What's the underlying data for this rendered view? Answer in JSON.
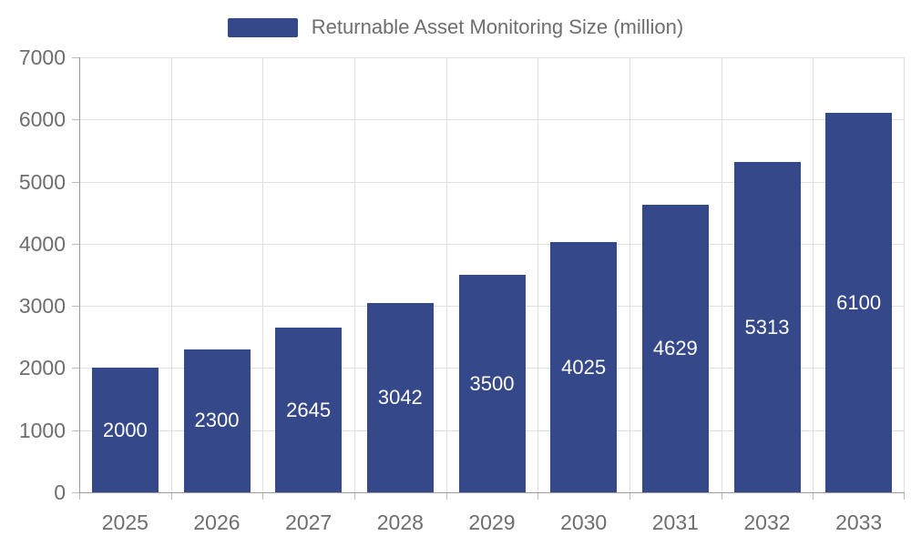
{
  "chart_data": {
    "type": "bar",
    "title": "Returnable Asset Monitoring Size (million)",
    "categories": [
      "2025",
      "2026",
      "2027",
      "2028",
      "2029",
      "2030",
      "2031",
      "2032",
      "2033"
    ],
    "values": [
      2000,
      2300,
      2645,
      3042,
      3500,
      4025,
      4629,
      5313,
      6100
    ],
    "xlabel": "",
    "ylabel": "",
    "ylim": [
      0,
      7000
    ],
    "yticks": [
      0,
      1000,
      2000,
      3000,
      4000,
      5000,
      6000,
      7000
    ],
    "grid": true,
    "legend_position": "top",
    "value_label_position": "inside-center"
  },
  "colors": {
    "bar": "#35488A",
    "gridline": "#e0e0e0",
    "axis_line": "#999999",
    "tick": "#bbbbbb",
    "axis_text": "#6e6e6e",
    "legend_text": "#6e6e6e",
    "value_label_text": "#ffffff",
    "background": "#ffffff"
  }
}
